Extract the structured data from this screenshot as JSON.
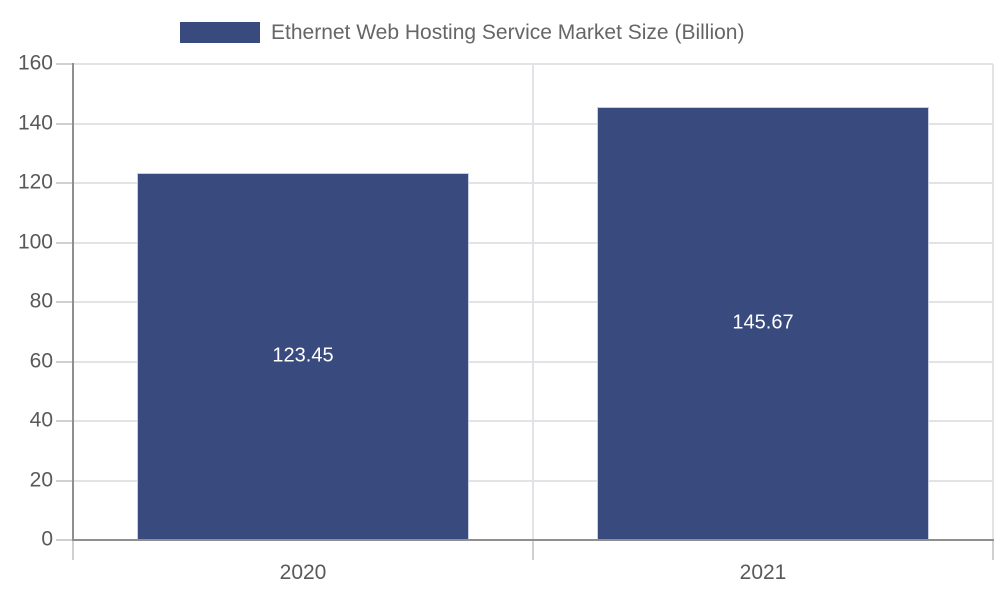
{
  "legend": {
    "label": "Ethernet Web Hosting Service Market Size (Billion)"
  },
  "chart_data": {
    "type": "bar",
    "title": "Ethernet Web Hosting Service Market Size (Billion)",
    "categories": [
      "2020",
      "2021"
    ],
    "values": [
      123.45,
      145.67
    ],
    "value_labels": [
      "123.45",
      "145.67"
    ],
    "xlabel": "",
    "ylabel": "",
    "ylim": [
      0,
      160
    ],
    "yticks": [
      0,
      20,
      40,
      60,
      80,
      100,
      120,
      140,
      160
    ],
    "grid": true,
    "legend_position": "top",
    "bar_width_fraction": 0.72,
    "colors": {
      "bar": "#384A7E",
      "bar_border": "#C9CFE2",
      "value_label": "#FFFFFF",
      "axis_text": "#595959",
      "legend_text": "#666666",
      "gridline": "#E3E3E7",
      "axis_line": "#8F8F8F",
      "tick": "#CFCFD4"
    }
  }
}
